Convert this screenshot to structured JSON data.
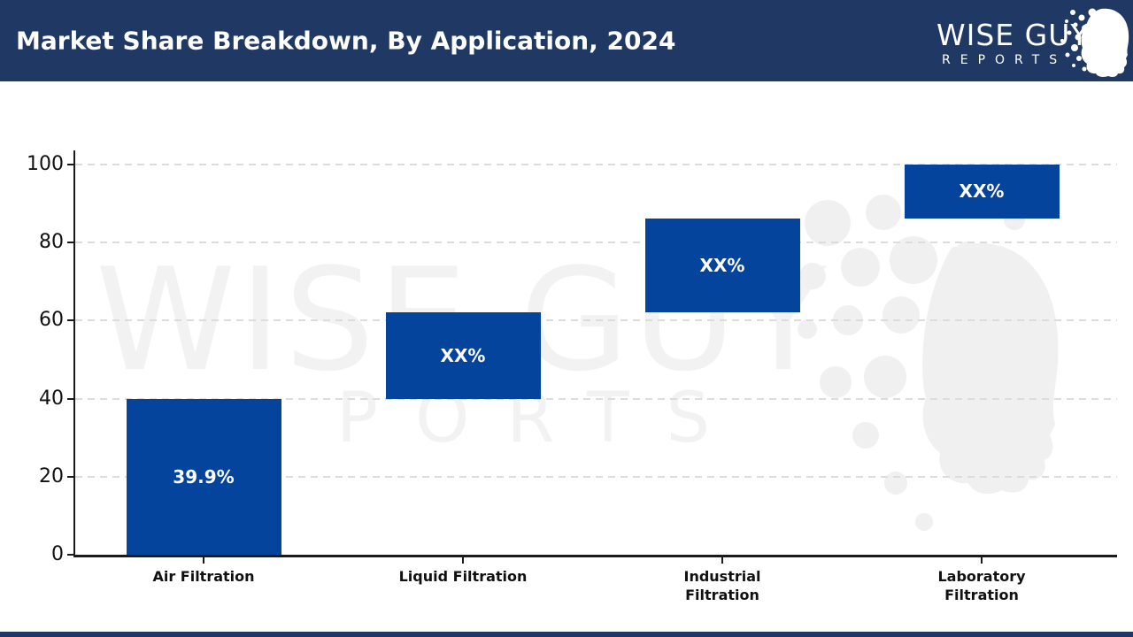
{
  "header": {
    "title": "Market Share Breakdown, By Application, 2024",
    "logo": {
      "line1": "WISE GUY",
      "line2": "REPORTS"
    }
  },
  "watermark": {
    "line1": "WISE GUY",
    "line2": "PORTS"
  },
  "chart_data": {
    "type": "bar",
    "subtype": "waterfall",
    "title": "Market Share Breakdown, By Application, 2024",
    "xlabel": "",
    "ylabel": "",
    "ylim": [
      0,
      100
    ],
    "yticks": [
      0,
      20,
      40,
      60,
      80,
      100
    ],
    "grid": "horizontal-dashed",
    "legend": "none",
    "bar_color": "#04449c",
    "label_color": "#ffffff",
    "categories": [
      "Air Filtration",
      "Liquid Filtration",
      "Industrial Filtration",
      "Laboratory Filtration"
    ],
    "category_lines": [
      [
        "Air Filtration"
      ],
      [
        "Liquid Filtration"
      ],
      [
        "Industrial",
        "Filtration"
      ],
      [
        "Laboratory",
        "Filtration"
      ]
    ],
    "segments": [
      {
        "category": "Air Filtration",
        "start": 0,
        "end": 39.9,
        "value": 39.9,
        "label": "39.9%"
      },
      {
        "category": "Liquid Filtration",
        "start": 39.9,
        "end": 62.1,
        "value": 22.2,
        "label": "XX%"
      },
      {
        "category": "Industrial Filtration",
        "start": 62.1,
        "end": 86.2,
        "value": 24.1,
        "label": "XX%"
      },
      {
        "category": "Laboratory Filtration",
        "start": 86.2,
        "end": 100,
        "value": 13.8,
        "label": "XX%"
      }
    ]
  }
}
